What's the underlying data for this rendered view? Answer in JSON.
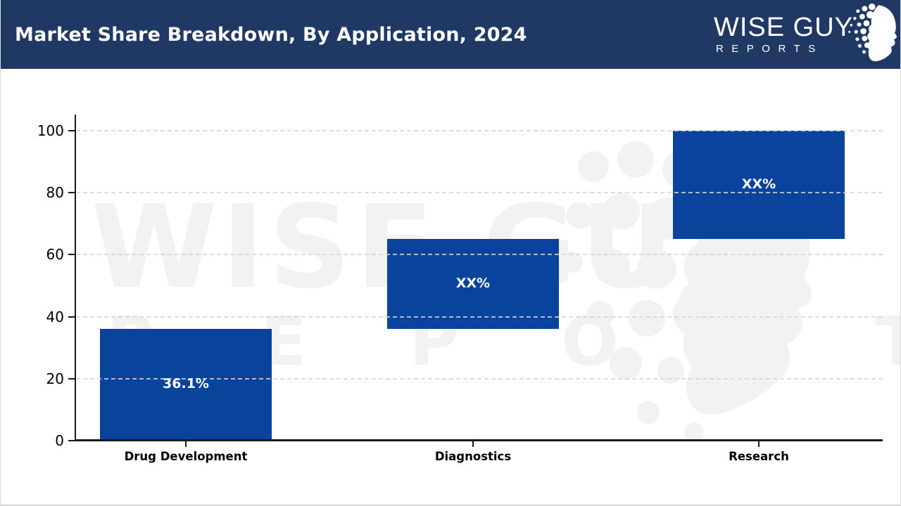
{
  "header": {
    "title": "Market Share Breakdown, By Application, 2024",
    "background_color": "#1f3864",
    "text_color": "#ffffff"
  },
  "logo": {
    "line1": "WISE GUY",
    "line2": "REPORTS",
    "head_icon": "dotted-face-profile"
  },
  "watermark": {
    "line1": "WISE GUY",
    "line2": "R E P O R T S",
    "head_icon": "dotted-face-profile",
    "color": "#f2f2f3"
  },
  "chart_data": {
    "type": "bar",
    "subtype": "floating-segment-waterfall",
    "title": "Market Share Breakdown, By Application, 2024",
    "categories": [
      "Drug Development",
      "Diagnostics",
      "Research"
    ],
    "segments": [
      {
        "category": "Drug Development",
        "start": 0,
        "end": 36.1,
        "label": "36.1%"
      },
      {
        "category": "Diagnostics",
        "start": 36.1,
        "end": 65,
        "label": "XX%"
      },
      {
        "category": "Research",
        "start": 65,
        "end": 100,
        "label": "XX%"
      }
    ],
    "xlabel": "",
    "ylabel": "",
    "ylim": [
      0,
      100
    ],
    "yticks": [
      0,
      20,
      40,
      60,
      80,
      100
    ],
    "grid": "horizontal dashed, drawn over bars",
    "legend_position": "none",
    "bar_color": "#09439B",
    "bar_label_color": "#ffffff",
    "axis_color": "#1a1a1a"
  }
}
